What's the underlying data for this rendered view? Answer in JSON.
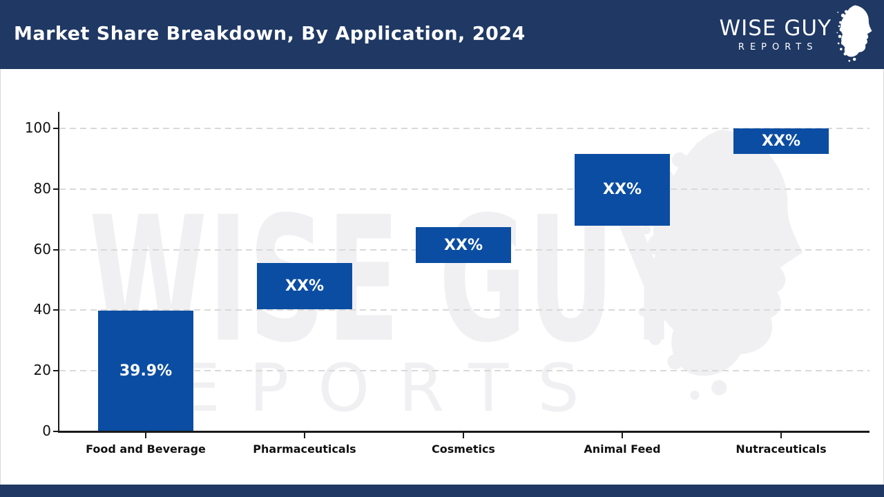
{
  "header": {
    "title": "Market Share Breakdown, By Application, 2024",
    "logo_line1": "WISE GUY",
    "logo_line2": "REPORTS"
  },
  "watermark": {
    "line1": "WISE GUY",
    "line2": "REPORTS"
  },
  "colors": {
    "header_bg": "#1f3864",
    "footer_bg": "#1f3864",
    "bar_fill": "#0b4da2",
    "bar_label": "#ffffff",
    "grid": "#d9d9d9",
    "axis": "#1a1a1a",
    "watermark": "#f0f0f2"
  },
  "chart_data": {
    "type": "bar",
    "subtype": "waterfall",
    "title": "Market Share Breakdown, By Application, 2024",
    "categories": [
      "Food and Beverage",
      "Pharmaceuticals",
      "Cosmetics",
      "Animal Feed",
      "Nutraceuticals"
    ],
    "series": [
      {
        "name": "Market Share (%)",
        "segments": [
          {
            "category": "Food and Beverage",
            "start": 0,
            "end": 39.9,
            "label": "39.9%"
          },
          {
            "category": "Pharmaceuticals",
            "start": 40.3,
            "end": 55.6,
            "label": "XX%"
          },
          {
            "category": "Cosmetics",
            "start": 55.6,
            "end": 67.4,
            "label": "XX%"
          },
          {
            "category": "Animal Feed",
            "start": 67.9,
            "end": 91.6,
            "label": "XX%"
          },
          {
            "category": "Nutraceuticals",
            "start": 91.6,
            "end": 100,
            "label": "XX%"
          }
        ]
      }
    ],
    "ylim": [
      0,
      100
    ],
    "yticks": [
      0,
      20,
      40,
      60,
      80,
      100
    ],
    "grid": "horizontal-dashed",
    "legend": "none"
  }
}
